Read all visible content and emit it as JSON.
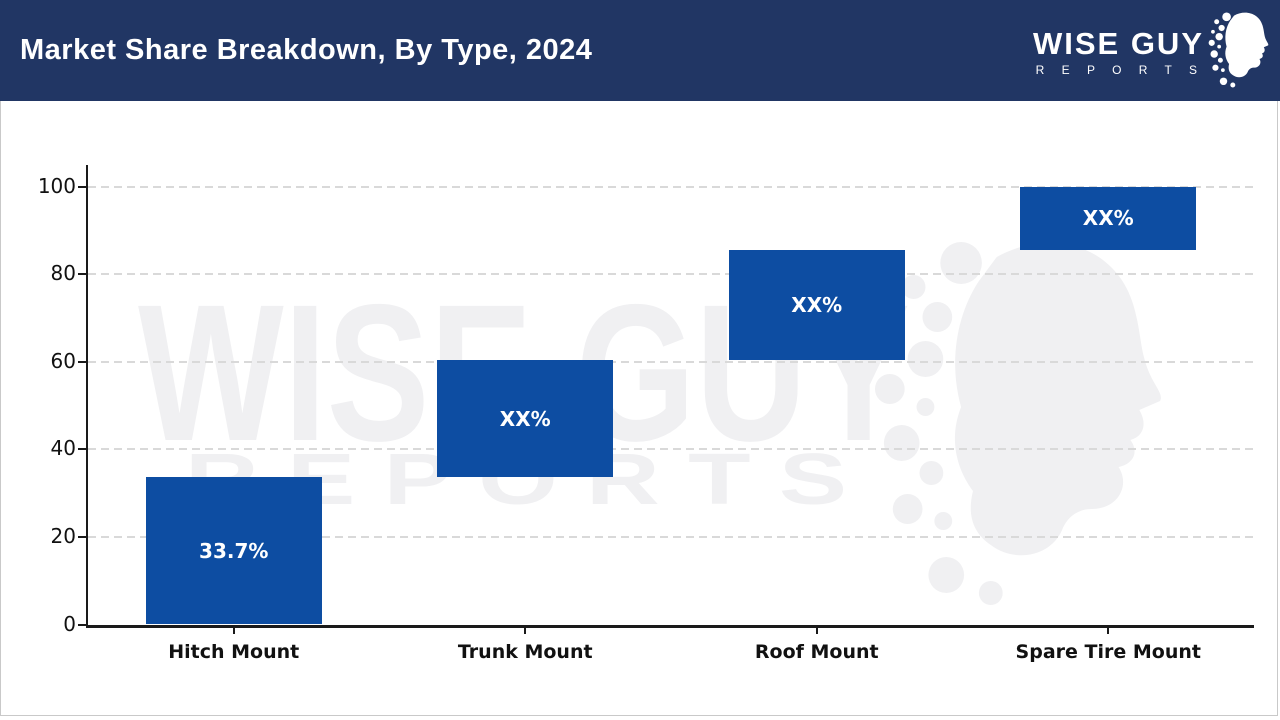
{
  "header": {
    "title": "Market Share Breakdown, By Type, 2024",
    "bg_color": "#213664",
    "logo": {
      "line1": "WISE GUY",
      "line2": "R E P O R T S"
    }
  },
  "watermark": {
    "line1": "WISE GUY",
    "line2": "R E P O R T S"
  },
  "chart_data": {
    "type": "bar",
    "subtype": "floating-waterfall",
    "title": "Market Share Breakdown, By Type, 2024",
    "categories": [
      "Hitch Mount",
      "Trunk Mount",
      "Roof Mount",
      "Spare Tire Mount"
    ],
    "segments": [
      {
        "category": "Hitch Mount",
        "start": 0,
        "end": 33.7,
        "label": "33.7%"
      },
      {
        "category": "Trunk Mount",
        "start": 33.7,
        "end": 60.3,
        "label": "XX%"
      },
      {
        "category": "Roof Mount",
        "start": 60.3,
        "end": 85.5,
        "label": "XX%"
      },
      {
        "category": "Spare Tire Mount",
        "start": 85.5,
        "end": 100,
        "label": "XX%"
      }
    ],
    "ylim": [
      0,
      100
    ],
    "yticks": [
      0,
      20,
      40,
      60,
      80,
      100
    ],
    "xlabel": "",
    "ylabel": "",
    "grid": "horizontal-dashed",
    "legend": "none",
    "bar_color": "#0d4da2",
    "bar_label_color": "#ffffff"
  }
}
